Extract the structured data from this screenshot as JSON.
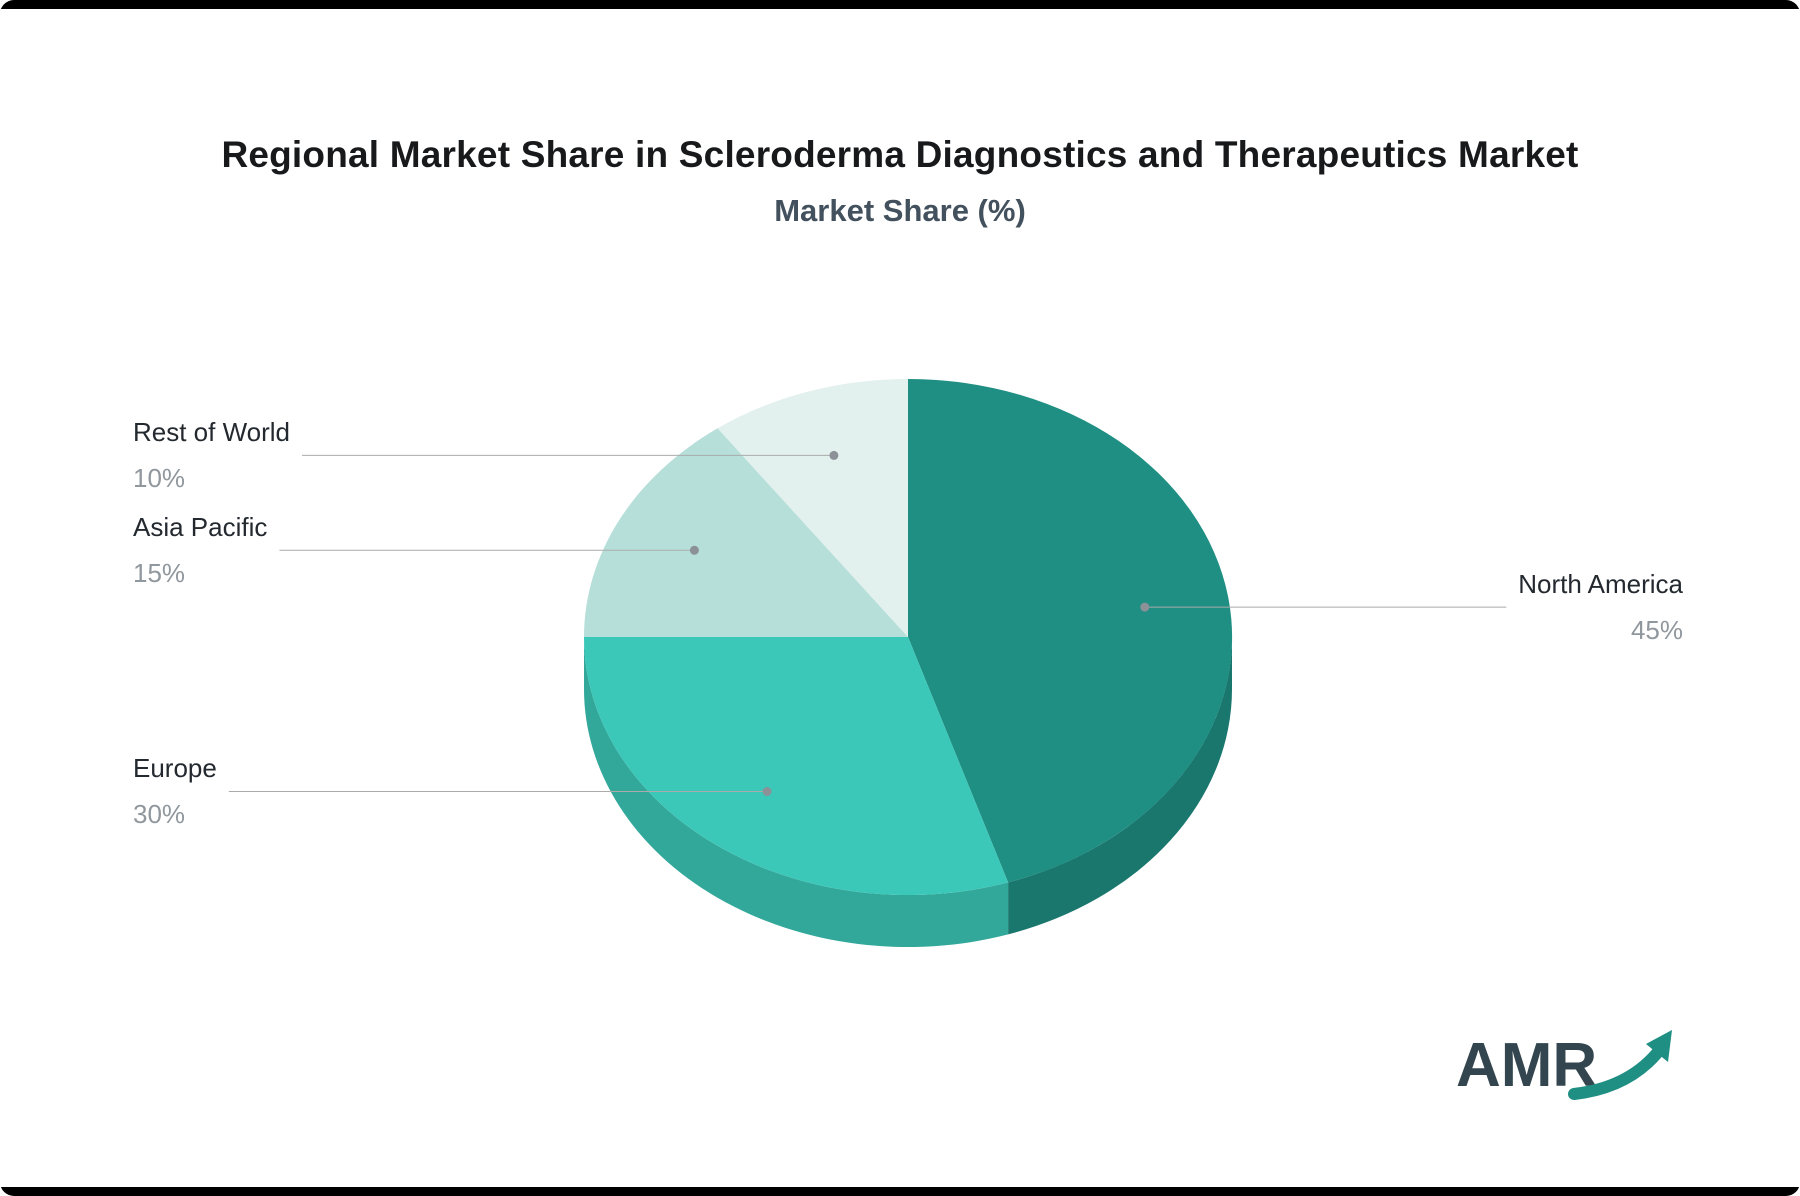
{
  "chart_data": {
    "type": "pie",
    "title": "Regional Market Share in Scleroderma Diagnostics and Therapeutics Market",
    "subtitle": "Market Share (%)",
    "categories": [
      "North America",
      "Europe",
      "Asia Pacific",
      "Rest of World"
    ],
    "values": [
      45,
      30,
      15,
      10
    ],
    "labels": [
      "45%",
      "30%",
      "15%",
      "10%"
    ],
    "colors": [
      "#1f8e83",
      "#3cc8b8",
      "#b6dfda",
      "#e2f0ee"
    ],
    "unit": "percent",
    "start_angle_deg": 0,
    "direction": "clockwise",
    "style": "3d",
    "legend_position": "none",
    "callouts": "leader-lines"
  },
  "logo": {
    "text": "AMR",
    "text_color": "#33454e",
    "arrow_color": "#1f8e83"
  }
}
